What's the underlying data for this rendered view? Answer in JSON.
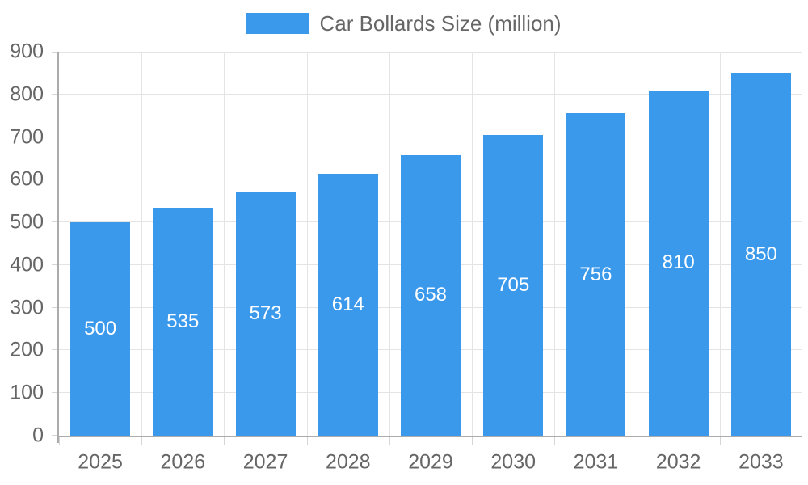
{
  "chart_data": {
    "type": "bar",
    "title": "Car Bollards Size (million)",
    "categories": [
      "2025",
      "2026",
      "2027",
      "2028",
      "2029",
      "2030",
      "2031",
      "2032",
      "2033"
    ],
    "values": [
      500,
      535,
      573,
      614,
      658,
      705,
      756,
      810,
      850
    ],
    "series": [
      {
        "name": "Car Bollards Size (million)",
        "values": [
          500,
          535,
          573,
          614,
          658,
          705,
          756,
          810,
          850
        ]
      }
    ],
    "xlabel": "",
    "ylabel": "",
    "ylim": [
      0,
      900
    ],
    "ytick_step": 100,
    "yticks": [
      0,
      100,
      200,
      300,
      400,
      500,
      600,
      700,
      800,
      900
    ],
    "grid": true,
    "value_labels_shown": true,
    "legend": {
      "label": "Car Bollards Size (million)",
      "position": "top"
    },
    "colors": {
      "bar": "#3B99EC",
      "value_label": "#FFFFFF",
      "axis_text": "#666666",
      "grid_line": "#E4E4E4",
      "axis_line": "#ABABAB",
      "tick_line": "#D5D5D5",
      "background": "#FFFFFF"
    }
  }
}
